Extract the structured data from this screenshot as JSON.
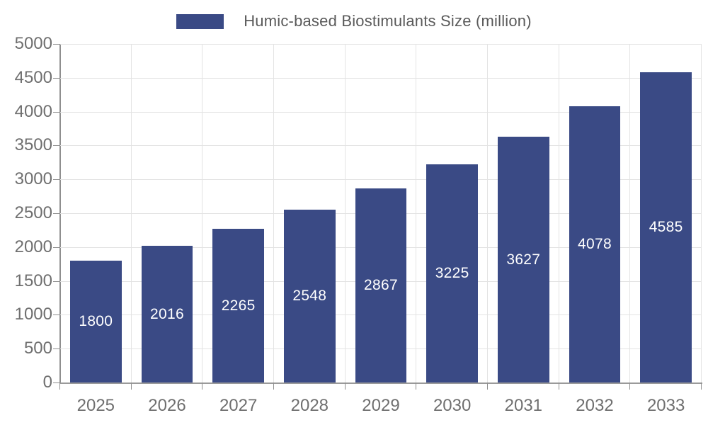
{
  "legend": {
    "label": "Humic-based Biostimulants Size (million)"
  },
  "chart_data": {
    "type": "bar",
    "title": "Humic-based Biostimulants Size (million)",
    "series_name": "Humic-based Biostimulants Size (million)",
    "categories": [
      "2025",
      "2026",
      "2027",
      "2028",
      "2029",
      "2030",
      "2031",
      "2032",
      "2033"
    ],
    "values": [
      1800,
      2016,
      2265,
      2548,
      2867,
      3225,
      3627,
      4078,
      4585
    ],
    "xlabel": "",
    "ylabel": "",
    "ylim": [
      0,
      5000
    ],
    "ytick_step": 500,
    "ytick_labels": [
      "0",
      "500",
      "1000",
      "1500",
      "2000",
      "2500",
      "3000",
      "3500",
      "4000",
      "4500",
      "5000"
    ],
    "grid": true,
    "legend_position": "top",
    "value_labels": "inside-center",
    "colors": {
      "bar": "#3A4A85",
      "value_label": "#FFFFFF",
      "axis_label": "#6F6F6F",
      "legend_text": "#5A5A5A",
      "grid": "#E3E3E3",
      "axis_line": "#8F8F8F"
    }
  }
}
